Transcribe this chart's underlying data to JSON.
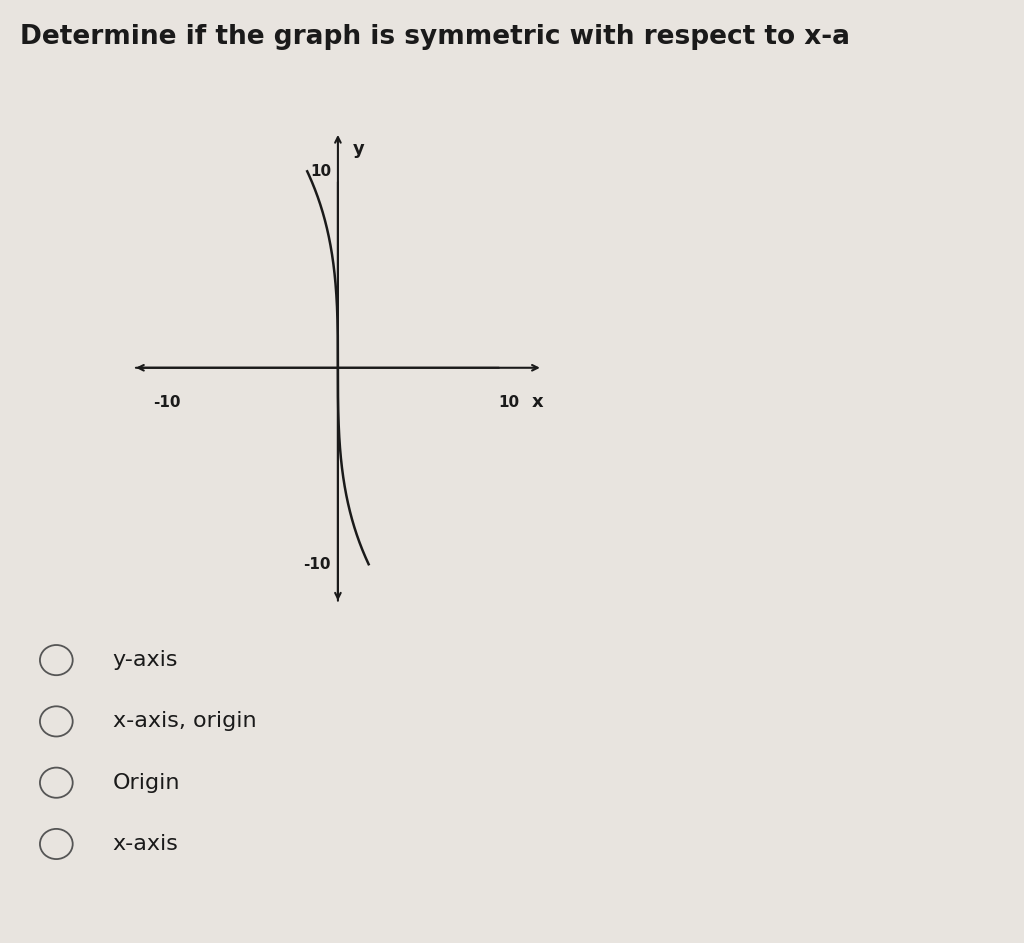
{
  "title": "Determine if the graph is symmetric with respect to x-a",
  "title_fontsize": 19,
  "title_fontweight": "bold",
  "bg_color": "#e8e4df",
  "ax_bg_color": "#e8e4df",
  "curve_color": "#1a1a1a",
  "axis_color": "#1a1a1a",
  "xlim": [
    -12,
    12
  ],
  "ylim": [
    -12,
    12
  ],
  "xlabel": "x",
  "ylabel": "y",
  "choices": [
    "y-axis",
    "x-axis, origin",
    "Origin",
    "x-axis"
  ],
  "choice_fontsize": 16,
  "radio_color": "#555555",
  "curve_x_at_y10": -1.8,
  "curve_coefficient": -0.0018
}
